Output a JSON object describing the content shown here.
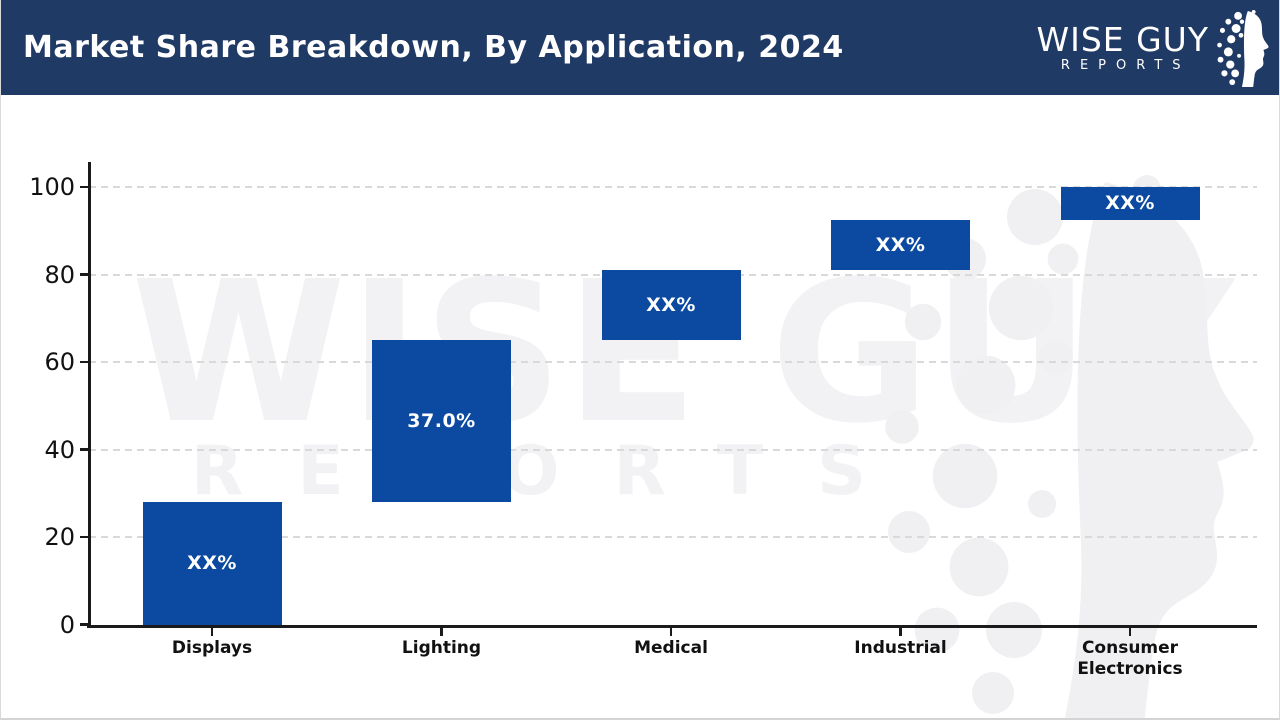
{
  "header": {
    "title": "Market Share Breakdown, By Application, 2024",
    "logo": {
      "line1": "WISE GUY",
      "line2": "REPORTS"
    }
  },
  "watermark": {
    "line1": "WISE GUY",
    "line2": "REPORTS"
  },
  "colors": {
    "header_bg": "#203a66",
    "bar": "#0b4aa0",
    "bar_label": "#ffffff",
    "axis": "#1a1a1a",
    "gridline": "#d9d9d9",
    "tick_label": "#111111",
    "watermark": "#f2f2f4"
  },
  "chart_data": {
    "type": "bar",
    "subtype": "waterfall",
    "title": "Market Share Breakdown, By Application, 2024",
    "xlabel": "",
    "ylabel": "",
    "ylim": [
      0,
      100
    ],
    "yticks": [
      0,
      20,
      40,
      60,
      80,
      100
    ],
    "grid": "horizontal-dashed",
    "legend": "none",
    "bar_color": "#0b4aa0",
    "categories": [
      "Displays",
      "Lighting",
      "Medical",
      "Industrial",
      "Consumer Electronics"
    ],
    "segments": [
      {
        "category": "Displays",
        "start": 0,
        "end": 28,
        "value": 28,
        "label": "XX%"
      },
      {
        "category": "Lighting",
        "start": 28,
        "end": 65,
        "value": 37.0,
        "label": "37.0%"
      },
      {
        "category": "Medical",
        "start": 65,
        "end": 81,
        "value": 16,
        "label": "XX%"
      },
      {
        "category": "Industrial",
        "start": 81,
        "end": 92.5,
        "value": 11.5,
        "label": "XX%"
      },
      {
        "category": "Consumer Electronics",
        "start": 92.5,
        "end": 100,
        "value": 7.5,
        "label": "XX%"
      }
    ]
  }
}
